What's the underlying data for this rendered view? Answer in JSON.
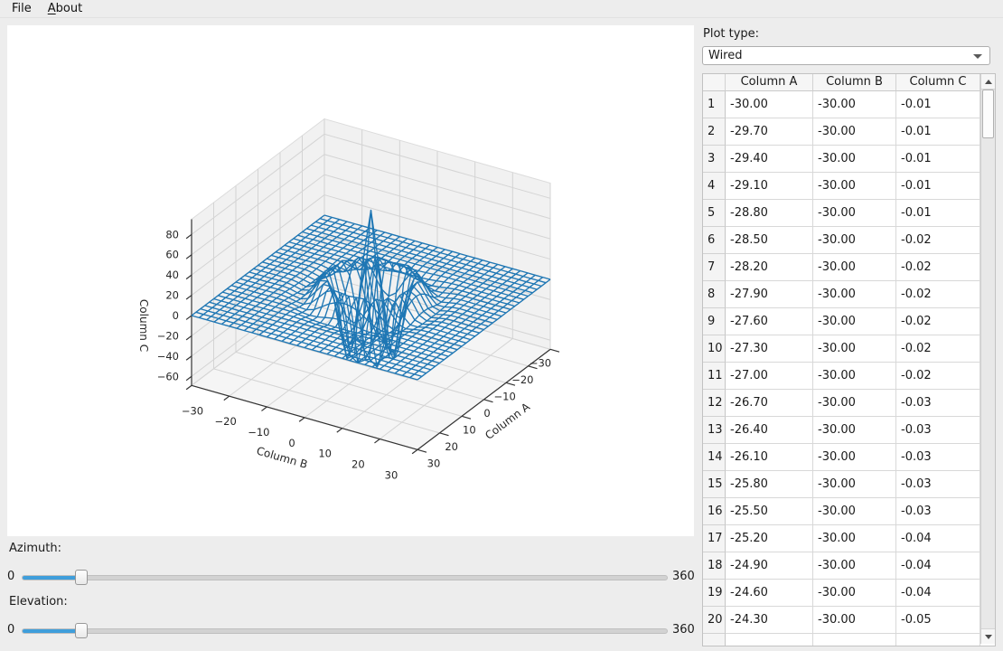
{
  "menu": {
    "items": [
      {
        "label": "File",
        "underline_index": -1
      },
      {
        "label": "About",
        "underline_index": 0
      }
    ]
  },
  "plot_type": {
    "label": "Plot type:",
    "value": "Wired"
  },
  "controls": {
    "azimuth": {
      "label": "Azimuth:",
      "min_label": "0",
      "max_label": "360",
      "min": 0,
      "max": 360,
      "value": 33
    },
    "elevation": {
      "label": "Elevation:",
      "min_label": "0",
      "max_label": "360",
      "min": 0,
      "max": 360,
      "value": 33
    }
  },
  "table": {
    "columns": [
      "Column A",
      "Column B",
      "Column C"
    ],
    "rows": [
      {
        "n": "1",
        "a": "-30.00",
        "b": "-30.00",
        "c": "-0.01"
      },
      {
        "n": "2",
        "a": "-29.70",
        "b": "-30.00",
        "c": "-0.01"
      },
      {
        "n": "3",
        "a": "-29.40",
        "b": "-30.00",
        "c": "-0.01"
      },
      {
        "n": "4",
        "a": "-29.10",
        "b": "-30.00",
        "c": "-0.01"
      },
      {
        "n": "5",
        "a": "-28.80",
        "b": "-30.00",
        "c": "-0.01"
      },
      {
        "n": "6",
        "a": "-28.50",
        "b": "-30.00",
        "c": "-0.02"
      },
      {
        "n": "7",
        "a": "-28.20",
        "b": "-30.00",
        "c": "-0.02"
      },
      {
        "n": "8",
        "a": "-27.90",
        "b": "-30.00",
        "c": "-0.02"
      },
      {
        "n": "9",
        "a": "-27.60",
        "b": "-30.00",
        "c": "-0.02"
      },
      {
        "n": "10",
        "a": "-27.30",
        "b": "-30.00",
        "c": "-0.02"
      },
      {
        "n": "11",
        "a": "-27.00",
        "b": "-30.00",
        "c": "-0.02"
      },
      {
        "n": "12",
        "a": "-26.70",
        "b": "-30.00",
        "c": "-0.03"
      },
      {
        "n": "13",
        "a": "-26.40",
        "b": "-30.00",
        "c": "-0.03"
      },
      {
        "n": "14",
        "a": "-26.10",
        "b": "-30.00",
        "c": "-0.03"
      },
      {
        "n": "15",
        "a": "-25.80",
        "b": "-30.00",
        "c": "-0.03"
      },
      {
        "n": "16",
        "a": "-25.50",
        "b": "-30.00",
        "c": "-0.03"
      },
      {
        "n": "17",
        "a": "-25.20",
        "b": "-30.00",
        "c": "-0.04"
      },
      {
        "n": "18",
        "a": "-24.90",
        "b": "-30.00",
        "c": "-0.04"
      },
      {
        "n": "19",
        "a": "-24.60",
        "b": "-30.00",
        "c": "-0.04"
      },
      {
        "n": "20",
        "a": "-24.30",
        "b": "-30.00",
        "c": "-0.05"
      },
      {
        "n": "",
        "a": "",
        "b": "",
        "c": ""
      }
    ]
  },
  "plot": {
    "xlabel": "Column B",
    "ylabel": "Column A",
    "zlabel": "Column C",
    "xticks": [
      -30,
      -20,
      -10,
      0,
      10,
      20,
      30
    ],
    "yticks": [
      -30,
      -20,
      -10,
      0,
      10,
      20,
      30
    ],
    "zticks": [
      -60,
      -40,
      -20,
      0,
      20,
      40,
      60,
      80
    ],
    "x_range": [
      -30,
      30
    ],
    "y_range": [
      -30,
      30
    ],
    "z_range": [
      -69,
      95
    ],
    "mesh": {
      "step": 2,
      "amplitude": 86,
      "freq": 0.55,
      "sigma": 9
    },
    "colors": {
      "mesh": "#1f77b4",
      "pane": "#f1f1f1",
      "floor": "#f5f5f5",
      "grid": "#d4d4d4",
      "axis": "#333333",
      "text": "#262626"
    }
  },
  "chart_data": {
    "type": "3d-wireframe",
    "xlabel": "Column B",
    "ylabel": "Column A",
    "zlabel": "Column C",
    "x_range": [
      -30,
      30
    ],
    "y_range": [
      -30,
      30
    ],
    "z_tick_range": [
      -60,
      80
    ],
    "x_tick_step": 10,
    "y_tick_step": 10,
    "z_tick_step": 20,
    "surface": "z = 86*cos(0.55*r)*exp(-(r/9)^2), r = sqrt(x^2+y^2); flat ~0 at edges, central peak ~85 with deep ring trough ~-58",
    "grid_step": 2,
    "line_color": "#1f77b4"
  }
}
